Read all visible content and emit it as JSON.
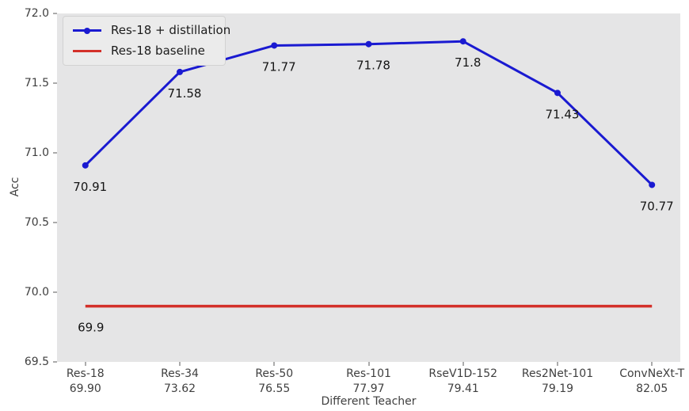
{
  "chart_data": {
    "type": "line",
    "title": "",
    "xlabel": "Different Teacher",
    "ylabel": "Acc",
    "ylim": [
      69.5,
      72.0
    ],
    "yticks": [
      "72.0",
      "71.5",
      "71.0",
      "70.5",
      "70.0",
      "69.5"
    ],
    "grid": false,
    "legend_position": "upper left",
    "plot_background": "#e5e5e6",
    "categories": [
      "Res-18",
      "Res-34",
      "Res-50",
      "Res-101",
      "RseV1D-152",
      "Res2Net-101",
      "ConvNeXt-T"
    ],
    "category_values": [
      "69.90",
      "73.62",
      "76.55",
      "77.97",
      "79.41",
      "79.19",
      "82.05"
    ],
    "series": [
      {
        "name": "Res-18 + distillation",
        "type": "line",
        "color": "#1a1ad1",
        "marker": "dot",
        "values": [
          70.91,
          71.58,
          71.77,
          71.78,
          71.8,
          71.43,
          70.77
        ],
        "labels": [
          "70.91",
          "71.58",
          "71.77",
          "71.78",
          "71.8",
          "71.43",
          "70.77"
        ]
      },
      {
        "name": "Res-18 baseline",
        "type": "hline",
        "color": "#d3302a",
        "value": 69.9,
        "label": "69.9"
      }
    ],
    "label_color": "#151515",
    "tick_color": "#3f3f3f"
  }
}
